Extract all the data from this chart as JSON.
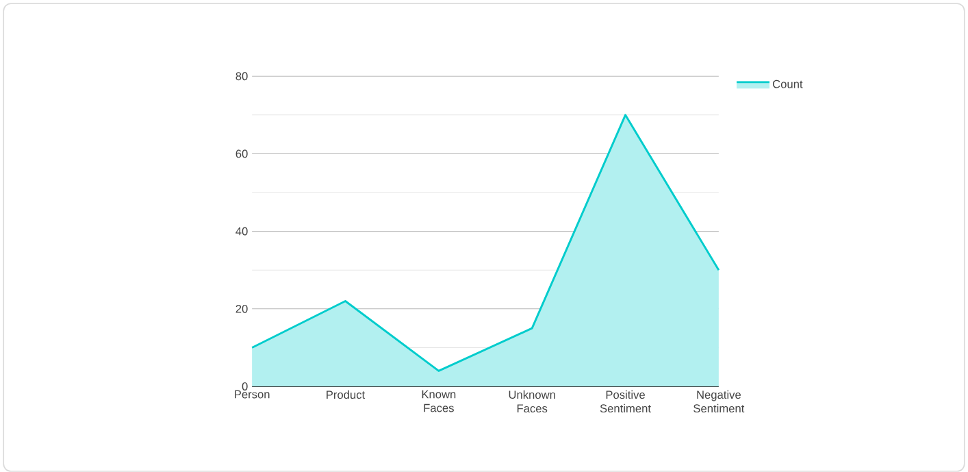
{
  "chart_data": {
    "type": "area",
    "categories": [
      "Person",
      "Product",
      "Known Faces",
      "Unknown Faces",
      "Positive Sentiment",
      "Negative Sentiment"
    ],
    "series": [
      {
        "name": "Count",
        "color": "#00cccc",
        "values": [
          10,
          22,
          4,
          15,
          70,
          30
        ]
      }
    ],
    "ylim": [
      0,
      80
    ],
    "yticks": [
      0,
      {
        "value": 10,
        "label": null
      },
      20,
      {
        "value": 30,
        "label": null
      },
      40,
      {
        "value": 50,
        "label": null
      },
      60,
      {
        "value": 70,
        "label": null
      },
      80
    ],
    "grid": "y",
    "legend": "top right"
  }
}
